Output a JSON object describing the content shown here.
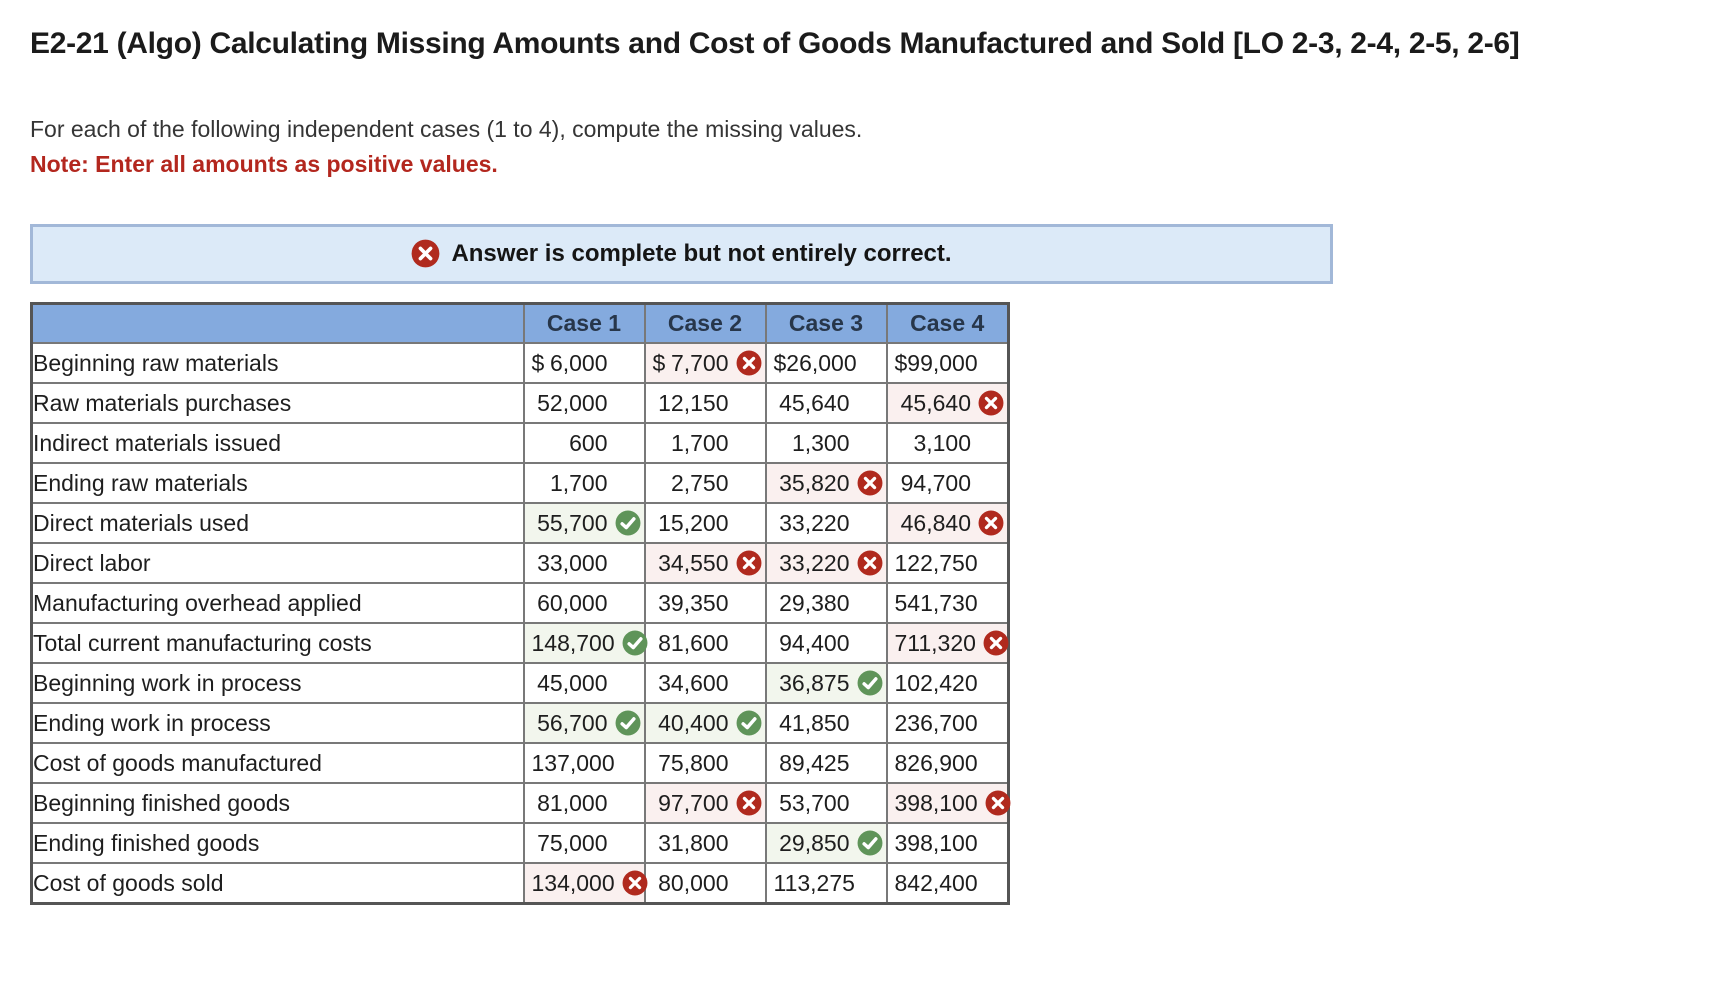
{
  "page": {
    "title": "E2-21 (Algo) Calculating Missing Amounts and Cost of Goods Manufactured and Sold [LO 2-3, 2-4, 2-5, 2-6]",
    "instructions": "For each of the following independent cases (1 to 4), compute the missing values.",
    "note": "Note: Enter all amounts as positive values."
  },
  "banner": {
    "icon": "x-circle-icon",
    "text": "Answer is complete but not entirely correct."
  },
  "icons": {
    "incorrect_mark": "x-circle-icon",
    "correct_mark": "check-circle-icon"
  },
  "colors": {
    "table_header_blue": "#84aade",
    "banner_bg": "#dceaf8",
    "banner_border": "#a2b8d8",
    "error_red": "#b02a1e",
    "correct_green": "#5f9459",
    "error_cell_bg": "#faf0ef",
    "correct_cell_bg": "#f2f6ed",
    "note_red": "#b3271e"
  },
  "table": {
    "corner_label": "",
    "columns": [
      "Case 1",
      "Case 2",
      "Case 3",
      "Case 4"
    ],
    "rows": [
      {
        "label": "Beginning raw materials",
        "cells": [
          {
            "prefix": "$",
            "value": "6,000"
          },
          {
            "prefix": "$",
            "value": "7,700",
            "mark": "incorrect"
          },
          {
            "prefix": "$",
            "value": "26,000"
          },
          {
            "prefix": "$",
            "value": "99,000"
          }
        ]
      },
      {
        "label": "Raw materials purchases",
        "cells": [
          {
            "value": "52,000"
          },
          {
            "value": "12,150"
          },
          {
            "value": "45,640"
          },
          {
            "value": "45,640",
            "mark": "incorrect"
          }
        ]
      },
      {
        "label": "Indirect materials issued",
        "cells": [
          {
            "value": "600"
          },
          {
            "value": "1,700"
          },
          {
            "value": "1,300"
          },
          {
            "value": "3,100"
          }
        ]
      },
      {
        "label": "Ending raw materials",
        "cells": [
          {
            "value": "1,700"
          },
          {
            "value": "2,750"
          },
          {
            "value": "35,820",
            "mark": "incorrect"
          },
          {
            "value": "94,700"
          }
        ]
      },
      {
        "label": "Direct materials used",
        "cells": [
          {
            "value": "55,700",
            "mark": "correct"
          },
          {
            "value": "15,200"
          },
          {
            "value": "33,220"
          },
          {
            "value": "46,840",
            "mark": "incorrect"
          }
        ]
      },
      {
        "label": "Direct labor",
        "cells": [
          {
            "value": "33,000"
          },
          {
            "value": "34,550",
            "mark": "incorrect"
          },
          {
            "value": "33,220",
            "mark": "incorrect"
          },
          {
            "value": "122,750"
          }
        ]
      },
      {
        "label": "Manufacturing overhead applied",
        "cells": [
          {
            "value": "60,000"
          },
          {
            "value": "39,350"
          },
          {
            "value": "29,380"
          },
          {
            "value": "541,730"
          }
        ]
      },
      {
        "label": "Total current manufacturing costs",
        "cells": [
          {
            "value": "148,700",
            "mark": "correct"
          },
          {
            "value": "81,600"
          },
          {
            "value": "94,400"
          },
          {
            "value": "711,320",
            "mark": "incorrect"
          }
        ]
      },
      {
        "label": "Beginning work in process",
        "cells": [
          {
            "value": "45,000"
          },
          {
            "value": "34,600"
          },
          {
            "value": "36,875",
            "mark": "correct"
          },
          {
            "value": "102,420"
          }
        ]
      },
      {
        "label": "Ending work in process",
        "cells": [
          {
            "value": "56,700",
            "mark": "correct"
          },
          {
            "value": "40,400",
            "mark": "correct"
          },
          {
            "value": "41,850"
          },
          {
            "value": "236,700"
          }
        ]
      },
      {
        "label": "Cost of goods manufactured",
        "cells": [
          {
            "value": "137,000"
          },
          {
            "value": "75,800"
          },
          {
            "value": "89,425"
          },
          {
            "value": "826,900"
          }
        ]
      },
      {
        "label": "Beginning finished goods",
        "cells": [
          {
            "value": "81,000"
          },
          {
            "value": "97,700",
            "mark": "incorrect"
          },
          {
            "value": "53,700"
          },
          {
            "value": "398,100",
            "mark": "incorrect"
          }
        ]
      },
      {
        "label": "Ending finished goods",
        "cells": [
          {
            "value": "75,000"
          },
          {
            "value": "31,800"
          },
          {
            "value": "29,850",
            "mark": "correct"
          },
          {
            "value": "398,100"
          }
        ]
      },
      {
        "label": "Cost of goods sold",
        "cells": [
          {
            "value": "134,000",
            "mark": "incorrect"
          },
          {
            "value": "80,000"
          },
          {
            "value": "113,275"
          },
          {
            "value": "842,400"
          }
        ]
      }
    ]
  }
}
